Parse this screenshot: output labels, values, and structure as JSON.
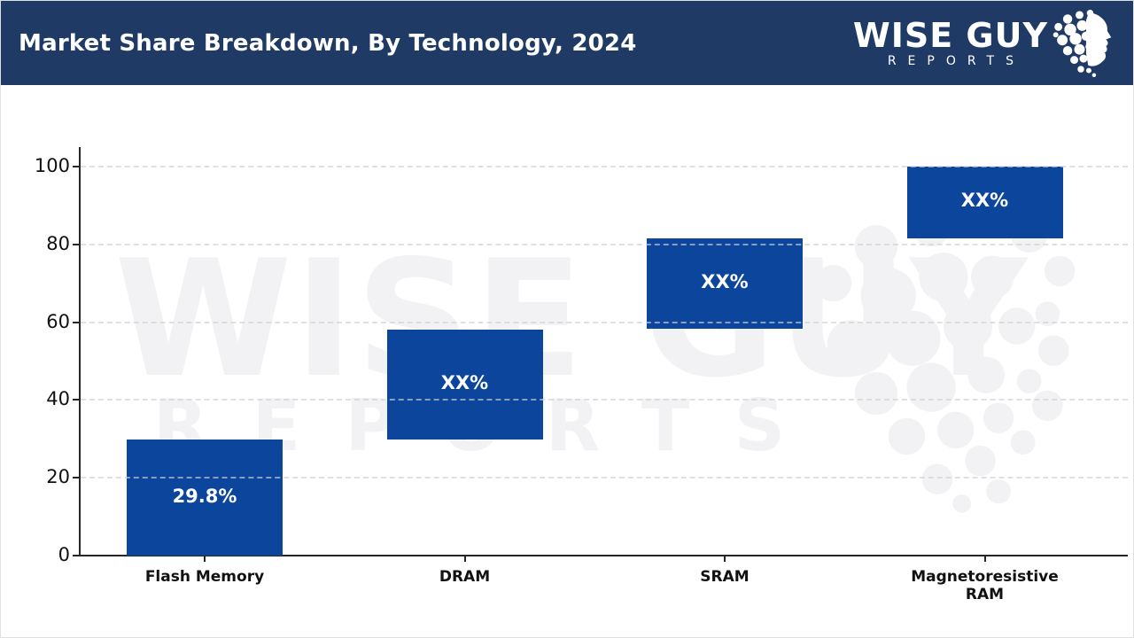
{
  "header": {
    "title": "Market Share Breakdown, By Technology, 2024",
    "background": "#203a66",
    "brand": {
      "line1": "WISE GUY",
      "line2": "REPORTS"
    }
  },
  "watermark": {
    "line1": "WISE GUY",
    "line2": "REPORTS"
  },
  "chart_data": {
    "type": "bar",
    "subtype": "floating-waterfall",
    "title": "Market Share Breakdown, By Technology, 2024",
    "categories": [
      "Flash Memory",
      "DRAM",
      "SRAM",
      "Magnetoresistive RAM"
    ],
    "segments": [
      {
        "from": 0,
        "to": 29.8,
        "label": "29.8%"
      },
      {
        "from": 29.8,
        "to": 58.2,
        "label": "XX%"
      },
      {
        "from": 58.2,
        "to": 81.6,
        "label": "XX%"
      },
      {
        "from": 81.6,
        "to": 100,
        "label": "XX%"
      }
    ],
    "xlabel": "",
    "ylabel": "",
    "ylim": [
      0,
      100
    ],
    "yticks": [
      0,
      20,
      40,
      60,
      80,
      100
    ],
    "grid": "horizontal-dashed",
    "legend": "none",
    "bar_color": "#0b459c",
    "bar_label_color": "#ffffff",
    "axis_color": "#262626",
    "tick_label_color": "#111111"
  }
}
